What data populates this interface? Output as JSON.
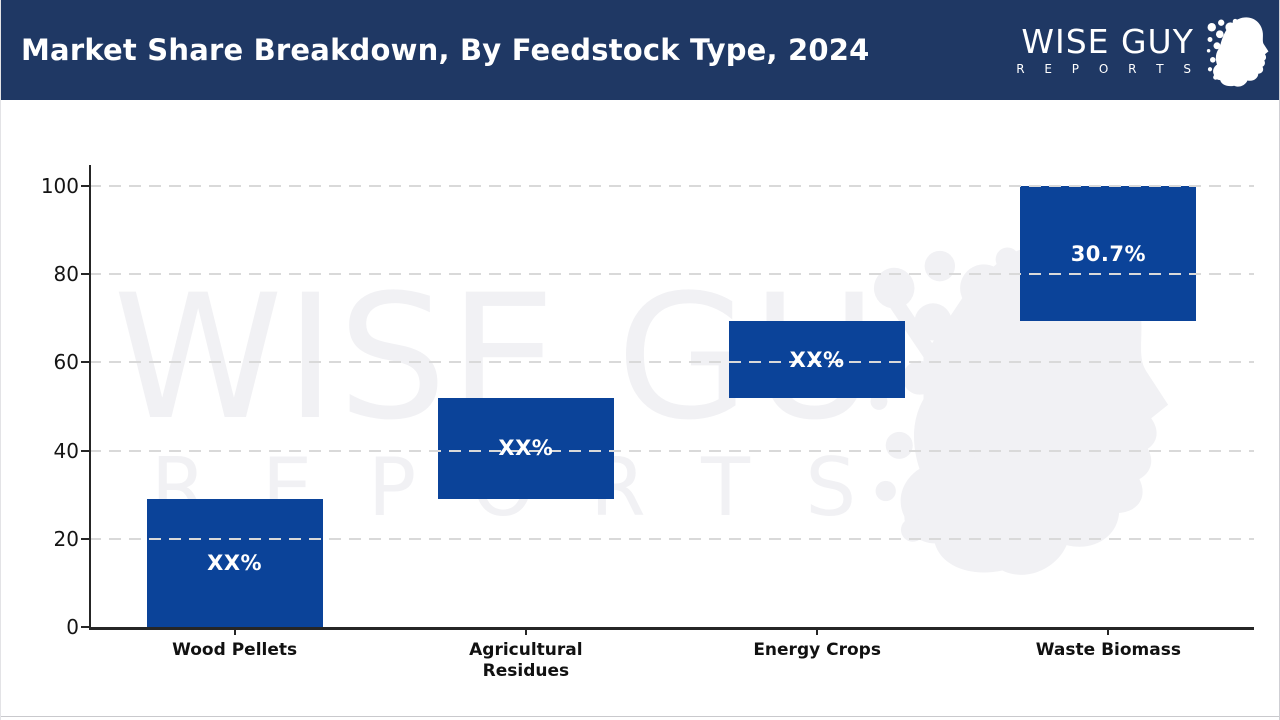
{
  "header": {
    "title": "Market Share Breakdown, By Feedstock Type, 2024",
    "brand_line1": "WISE GUY",
    "brand_line2": "R E P O R T S"
  },
  "watermark": {
    "line1": "WISE GUY",
    "line2": "R E P O R T S"
  },
  "chart_data": {
    "type": "bar",
    "variant": "waterfall",
    "title": "Market Share Breakdown, By Feedstock Type, 2024",
    "categories": [
      "Wood Pellets",
      "Agricultural Residues",
      "Energy Crops",
      "Waste Biomass"
    ],
    "bars": [
      {
        "category": "Wood Pellets",
        "start": 0,
        "end": 29,
        "value": 29,
        "label": "XX%"
      },
      {
        "category": "Agricultural Residues",
        "start": 29,
        "end": 52,
        "value": 23,
        "label": "XX%"
      },
      {
        "category": "Energy Crops",
        "start": 52,
        "end": 69.3,
        "value": 17.3,
        "label": "XX%"
      },
      {
        "category": "Waste Biomass",
        "start": 69.3,
        "end": 100,
        "value": 30.7,
        "label": "30.7%"
      }
    ],
    "yticks": [
      0,
      20,
      40,
      60,
      80,
      100
    ],
    "ylim": [
      0,
      105
    ],
    "xlabel": "",
    "ylabel": "",
    "grid": "horizontal-dashed",
    "legend": "none"
  },
  "colors": {
    "header_bg": "#1f3864",
    "bar": "#0b4399",
    "grid": "#d9d9d9",
    "axis": "#262626",
    "watermark": "#f1f1f4",
    "bar_label": "#ffffff"
  }
}
